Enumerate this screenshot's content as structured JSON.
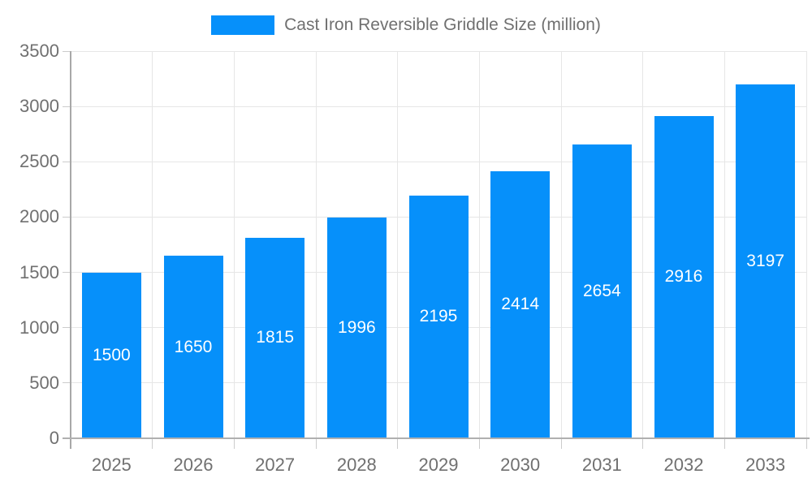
{
  "legend": {
    "label": "Cast Iron Reversible Griddle Size (million)"
  },
  "chart_data": {
    "type": "bar",
    "title": "Cast Iron Reversible Griddle Size (million)",
    "categories": [
      "2025",
      "2026",
      "2027",
      "2028",
      "2029",
      "2030",
      "2031",
      "2032",
      "2033"
    ],
    "values": [
      1500,
      1650,
      1815,
      1996,
      2195,
      2414,
      2654,
      2916,
      3197
    ],
    "series": [
      {
        "name": "Cast Iron Reversible Griddle Size (million)",
        "values": [
          1500,
          1650,
          1815,
          1996,
          2195,
          2414,
          2654,
          2916,
          3197
        ]
      }
    ],
    "xlabel": "",
    "ylabel": "",
    "ylim": [
      0,
      3500
    ],
    "yticks": [
      0,
      500,
      1000,
      1500,
      2000,
      2500,
      3000,
      3500
    ],
    "grid": true,
    "legend_position": "top-center",
    "value_labels": "inside-center",
    "colors": {
      "bar": "#0690FA",
      "bar_label": "#ffffff",
      "gridline": "#e6e6e6",
      "tick": "#cccccc",
      "x_axis": "#b0b0b0",
      "y_axis": "#a8a8a8",
      "text": "#707070"
    }
  }
}
